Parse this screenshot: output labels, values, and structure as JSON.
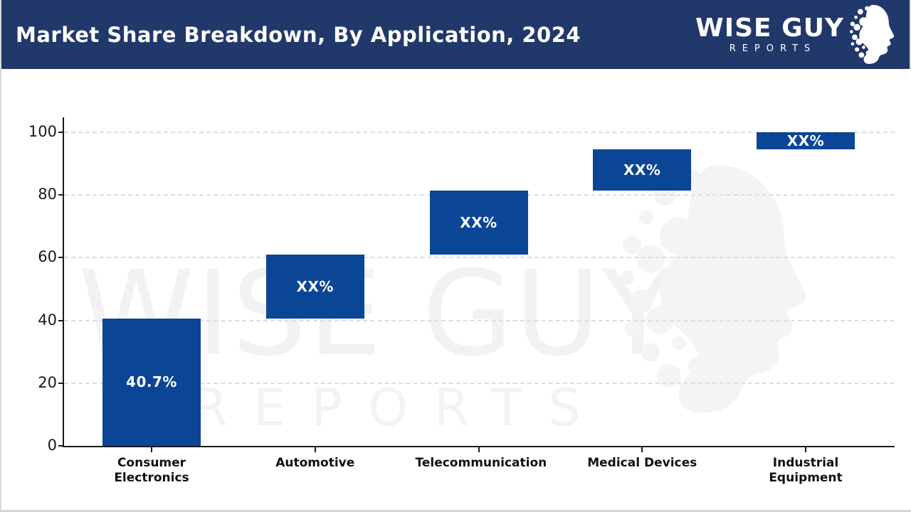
{
  "header": {
    "title": "Market Share Breakdown, By Application, 2024"
  },
  "logo": {
    "wise_guy": "WISE GUY",
    "reports": "REPORTS"
  },
  "watermark": {
    "wise_guy": "WISE GUY",
    "reports": "REPORTS"
  },
  "colors": {
    "header_bg": "#21386b",
    "bar_blue": "#0b4596",
    "grid": "#dedede",
    "watermark": "#f2f2f3",
    "text": "#1a1a1a"
  },
  "chart_data": {
    "type": "bar",
    "subtype": "waterfall",
    "title": "Market Share Breakdown, By Application, 2024",
    "categories": [
      "Consumer Electronics",
      "Automotive",
      "Telecommunication",
      "Medical Devices",
      "Industrial Equipment"
    ],
    "segments": [
      {
        "category": "Consumer Electronics",
        "start": 0,
        "end": 40.7,
        "label": "40.7%"
      },
      {
        "category": "Automotive",
        "start": 40.7,
        "end": 61,
        "label": "XX%"
      },
      {
        "category": "Telecommunication",
        "start": 61,
        "end": 81.5,
        "label": "XX%"
      },
      {
        "category": "Medical Devices",
        "start": 81.5,
        "end": 94.5,
        "label": "XX%"
      },
      {
        "category": "Industrial Equipment",
        "start": 94.5,
        "end": 100,
        "label": "XX%"
      }
    ],
    "yticks": [
      0,
      20,
      40,
      60,
      80,
      100
    ],
    "ylim": [
      0,
      105
    ],
    "xlabel": "",
    "ylabel": "",
    "legend": "none",
    "grid": "horizontal-dashed",
    "bar_color": "#0b4596",
    "bar_label_color": "#ffffff"
  }
}
